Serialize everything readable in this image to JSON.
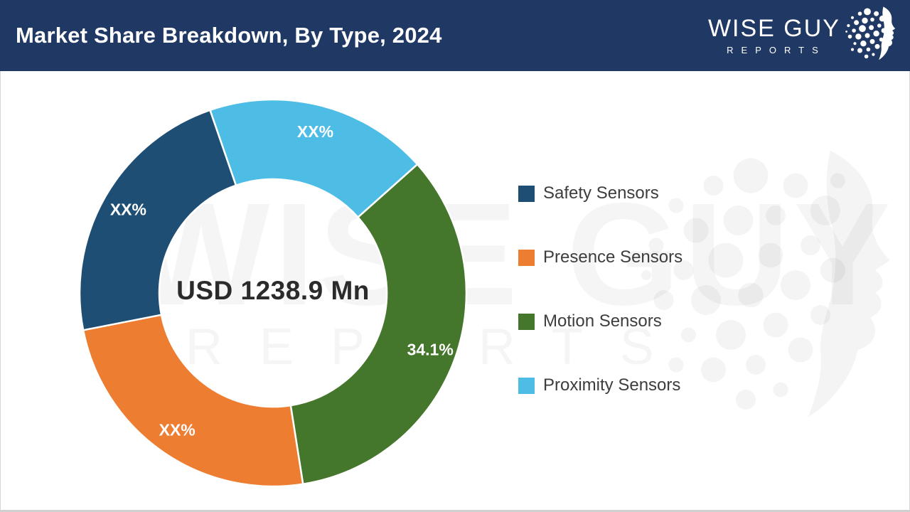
{
  "header": {
    "title": "Market Share Breakdown, By Type, 2024",
    "bg_color": "#203864",
    "logo": {
      "line1": "WISE GUY",
      "line2": "REPORTS"
    }
  },
  "watermark": {
    "line1": "WISE GUY",
    "line2": "REPORTS"
  },
  "chart_data": {
    "type": "donut",
    "center_label": "USD 1238.9 Mn",
    "start_angle_deg": 109,
    "direction": "clockwise",
    "inner_radius_ratio": 0.588,
    "segments_draw_order": [
      {
        "name": "Proximity Sensors",
        "percent": 18.7,
        "label": "XX%",
        "color": "#4DBDE6"
      },
      {
        "name": "Motion Sensors",
        "percent": 34.1,
        "label": "34.1%",
        "color": "#44762B"
      },
      {
        "name": "Presence Sensors",
        "percent": 24.4,
        "label": "XX%",
        "color": "#ED7D31"
      },
      {
        "name": "Safety Sensors",
        "percent": 22.8,
        "label": "XX%",
        "color": "#1F4E74"
      }
    ],
    "legend": {
      "position": "right",
      "items": [
        {
          "label": "Safety Sensors",
          "color": "#1F4E74"
        },
        {
          "label": "Presence Sensors",
          "color": "#ED7D31"
        },
        {
          "label": "Motion Sensors",
          "color": "#44762B"
        },
        {
          "label": "Proximity Sensors",
          "color": "#4DBDE6"
        }
      ]
    }
  }
}
